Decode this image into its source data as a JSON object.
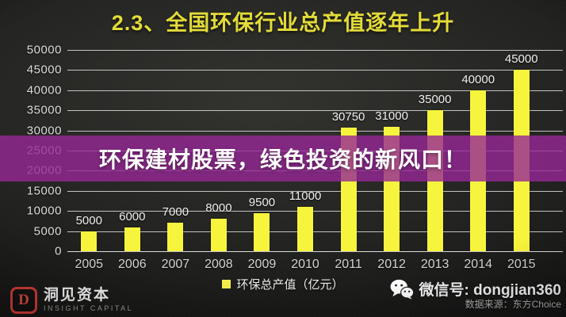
{
  "overlay_banner": {
    "text": "环保建材股票，绿色投资的新风口！",
    "color": "#962696"
  },
  "chart_data": {
    "type": "bar",
    "title": "2.3、全国环保行业总产值逐年上升",
    "categories": [
      "2005",
      "2006",
      "2007",
      "2008",
      "2009",
      "2010",
      "2011",
      "2012",
      "2013",
      "2014",
      "2015"
    ],
    "values": [
      5000,
      6000,
      7000,
      8000,
      9500,
      11000,
      30750,
      31000,
      35000,
      40000,
      45000
    ],
    "value_labels": [
      "5000",
      "6000",
      "7000",
      "8000",
      "9500",
      "11000",
      "30750",
      "31000",
      "35000",
      "40000",
      "45000"
    ],
    "ylim": [
      0,
      50000
    ],
    "yticks": [
      50000,
      45000,
      40000,
      35000,
      30000,
      25000,
      20000,
      15000,
      10000,
      5000,
      0
    ],
    "grid": true,
    "bar_color": "#f7f43c",
    "legend": {
      "label": "环保总产值（亿元）",
      "marker_color": "#f2ee4e",
      "position": "bottom-center"
    }
  },
  "footer": {
    "brand": {
      "logo_letter": "D",
      "name": "洞见资本",
      "name_en": "INSIGHT CAPITAL",
      "logo_color": "#cf3a35"
    },
    "wechat": {
      "label": "微信号: dongjian360"
    },
    "source": "数据来源：东方Choice"
  }
}
